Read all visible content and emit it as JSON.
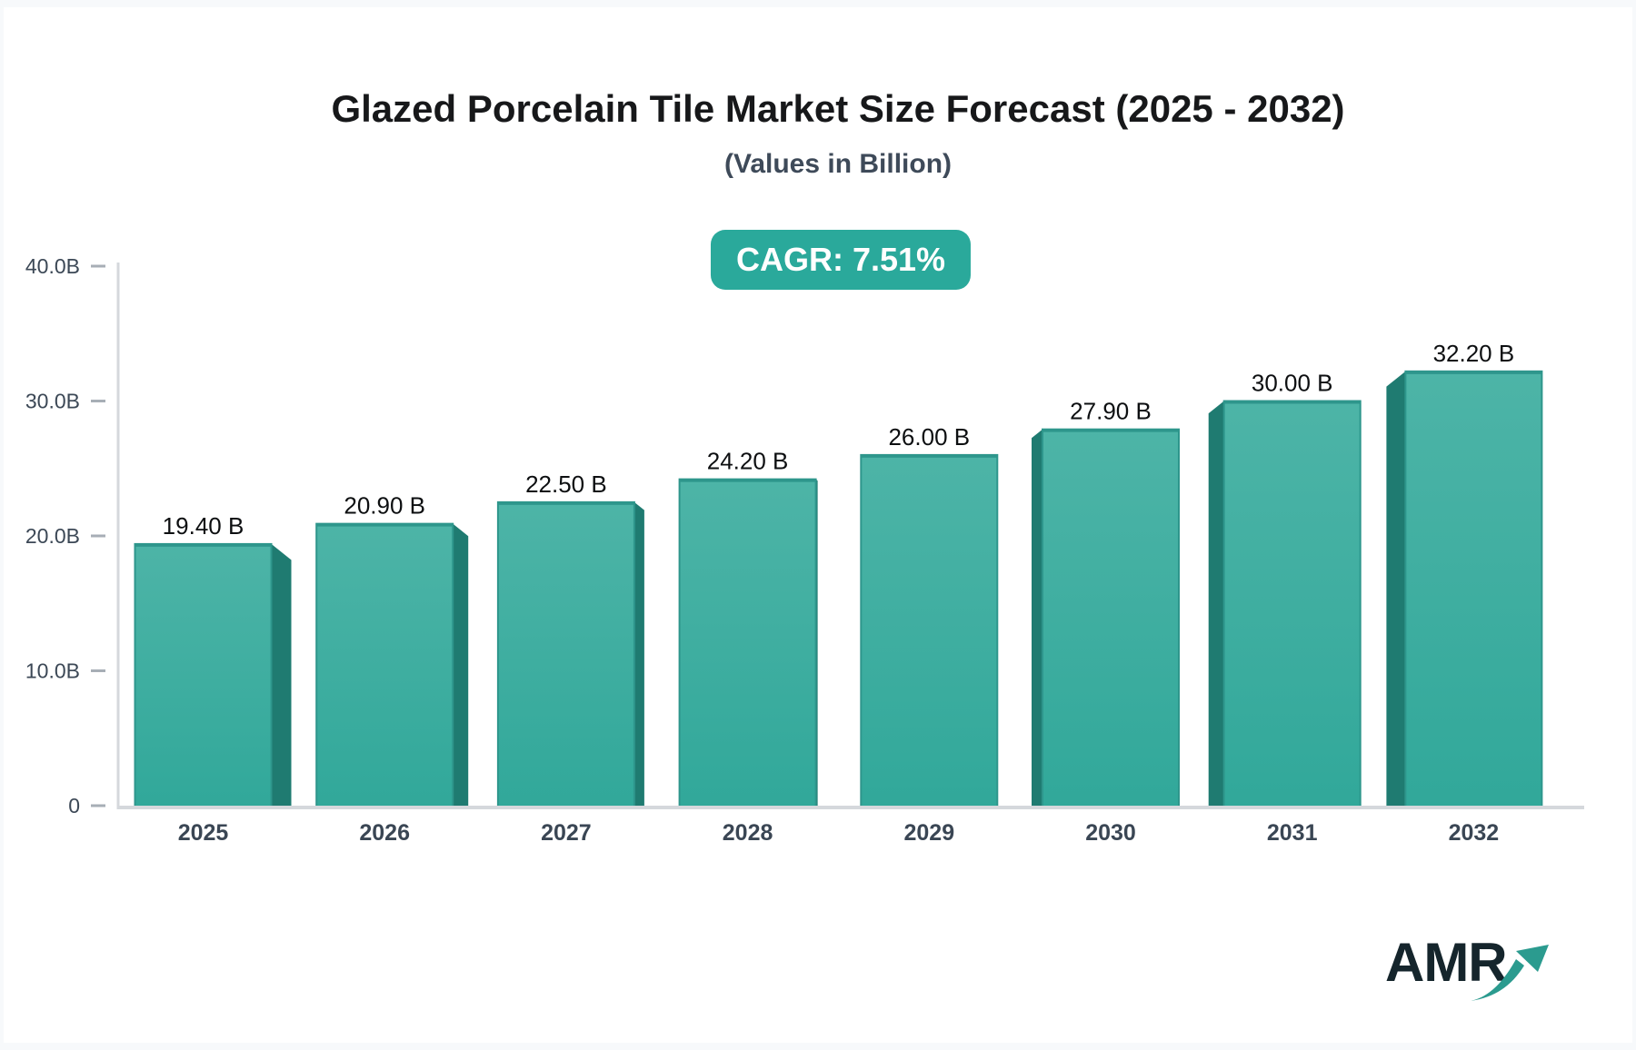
{
  "header": {
    "title": "Glazed Porcelain Tile Market Size Forecast (2025 - 2032)",
    "subtitle": "(Values in Billion)",
    "cagr_badge": "CAGR: 7.51%"
  },
  "chart_data": {
    "type": "bar",
    "title": "Glazed Porcelain Tile Market Size Forecast (2025 - 2032)",
    "subtitle": "(Values in Billion)",
    "unit": "Billion",
    "cagr_percent": 7.51,
    "categories": [
      "2025",
      "2026",
      "2027",
      "2028",
      "2029",
      "2030",
      "2031",
      "2032"
    ],
    "values": [
      19.4,
      20.9,
      22.5,
      24.2,
      26.0,
      27.9,
      30.0,
      32.2
    ],
    "value_labels": [
      "19.40 B",
      "20.90 B",
      "22.50 B",
      "24.20 B",
      "26.00 B",
      "27.90 B",
      "30.00 B",
      "32.20 B"
    ],
    "ylim": [
      0,
      40
    ],
    "ytick_values": [
      0,
      10,
      20,
      30,
      40
    ],
    "ytick_labels": [
      "0",
      "10.0B",
      "20.0B",
      "30.0B",
      "40.0B"
    ],
    "xlabel": "",
    "ylabel": "",
    "grid": false,
    "legend_position": "none",
    "bar_style": "3d-perspective",
    "colors": {
      "bar_face_top": "#4DB4A7",
      "bar_face_bottom": "#31A89A",
      "bar_side": "#1F7B71",
      "bar_edge": "#2E968C",
      "axis_line": "#D5D8DC",
      "tick_mark": "#A7AEB6",
      "axis_label": "#3C4856",
      "category_label": "#3A4654",
      "value_label": "#0D0F11",
      "badge_bg": "#2AA99B",
      "badge_text": "#FFFFFF"
    }
  },
  "logo": {
    "text": "AMR",
    "color": "#15252C",
    "arrow_color": "#2B9B8F"
  }
}
